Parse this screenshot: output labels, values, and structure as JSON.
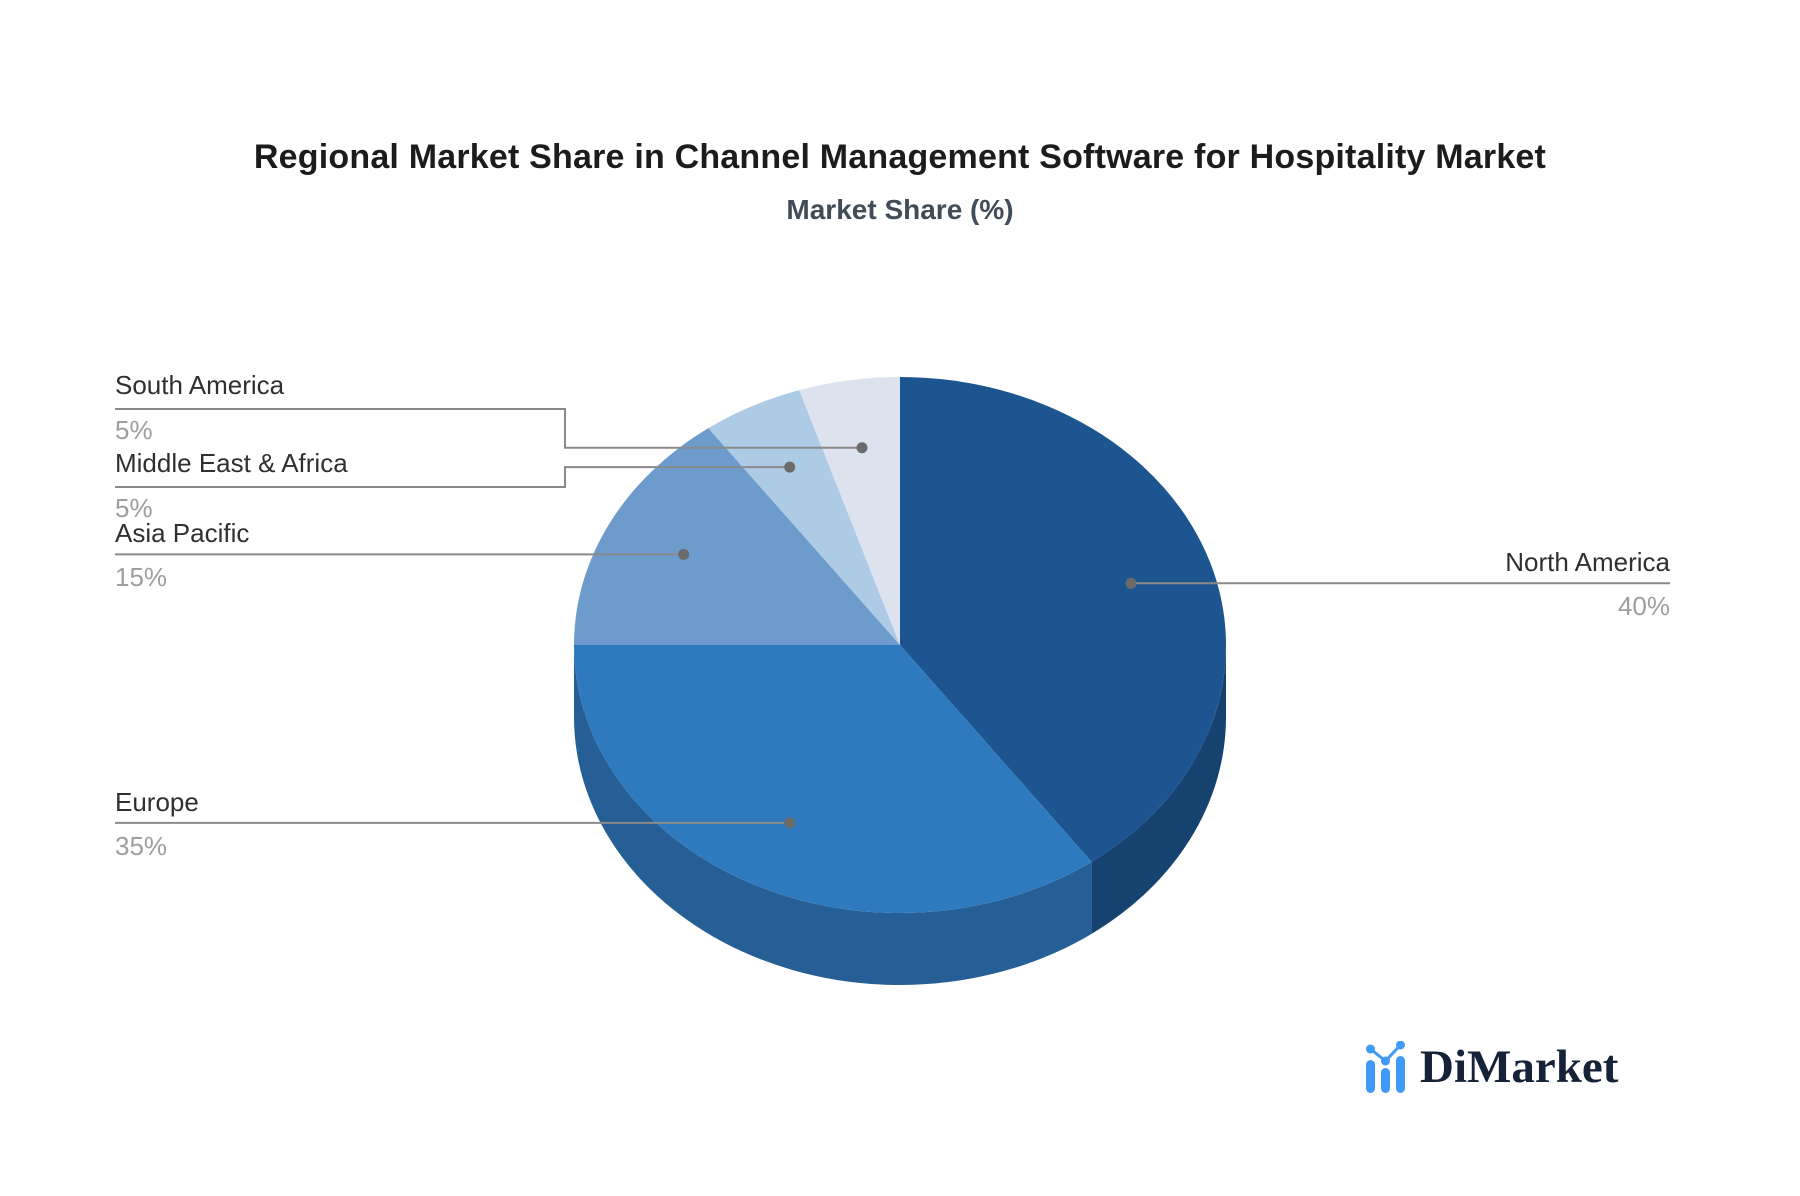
{
  "title": "Regional Market Share in Channel Management Software for Hospitality Market",
  "subtitle": "Market Share (%)",
  "brand": {
    "name": "DiMarket",
    "icon": "bar-chart-logo-icon",
    "icon_color": "#3f9bf7",
    "text_color": "#152238"
  },
  "chart_data": {
    "type": "pie",
    "title": "Regional Market Share in Channel Management Software for Hospitality Market",
    "subtitle": "Market Share (%)",
    "unit": "%",
    "start_angle_deg": 0,
    "direction": "clockwise",
    "style_3d": true,
    "legend": "none",
    "slices": [
      {
        "label": "North America",
        "value": 40,
        "pct_label": "40%",
        "color": "#1c5590"
      },
      {
        "label": "Europe",
        "value": 35,
        "pct_label": "35%",
        "color": "#2f7abf"
      },
      {
        "label": "Asia Pacific",
        "value": 15,
        "pct_label": "15%",
        "color": "#6d9bcc"
      },
      {
        "label": "Middle East & Africa",
        "value": 5,
        "pct_label": "5%",
        "color": "#aecbe5"
      },
      {
        "label": "South America",
        "value": 5,
        "pct_label": "5%",
        "color": "#dde3ee"
      }
    ],
    "leader_line_color": "#8a8a8a",
    "leader_dot_color": "#6b6b6b",
    "label_color": "#303030",
    "pct_color": "#9e9e9e"
  }
}
